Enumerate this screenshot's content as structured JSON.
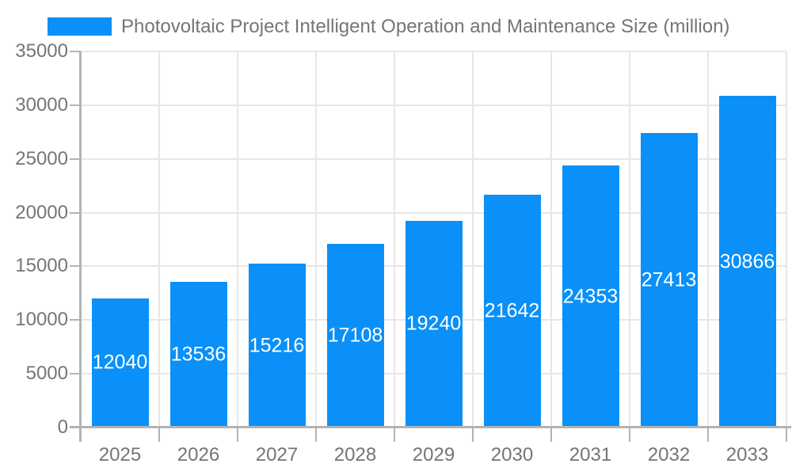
{
  "chart_data": {
    "type": "bar",
    "title": "Photovoltaic Project Intelligent Operation and Maintenance Size (million)",
    "legend_label": "Photovoltaic Project Intelligent Operation and Maintenance Size (million)",
    "legend_position": "top-left",
    "categories": [
      "2025",
      "2026",
      "2027",
      "2028",
      "2029",
      "2030",
      "2031",
      "2032",
      "2033"
    ],
    "values": [
      12040,
      13536,
      15216,
      17108,
      19240,
      21642,
      24353,
      27413,
      30866
    ],
    "bar_value_labels": [
      "12040",
      "13536",
      "15216",
      "17108",
      "19240",
      "21642",
      "24353",
      "27413",
      "30866"
    ],
    "xlabel": "",
    "ylabel": "",
    "ylim": [
      0,
      35000
    ],
    "yticks": [
      0,
      5000,
      10000,
      15000,
      20000,
      25000,
      30000,
      35000
    ],
    "grid": true,
    "colors": {
      "bar": "#0a90f8",
      "bar_value_text": "#ffffff",
      "axis_label_text": "#757575",
      "legend_text": "#757575",
      "gridline": "#e6e6e6",
      "axis_line": "#b3b3b3",
      "background": "#ffffff"
    }
  }
}
